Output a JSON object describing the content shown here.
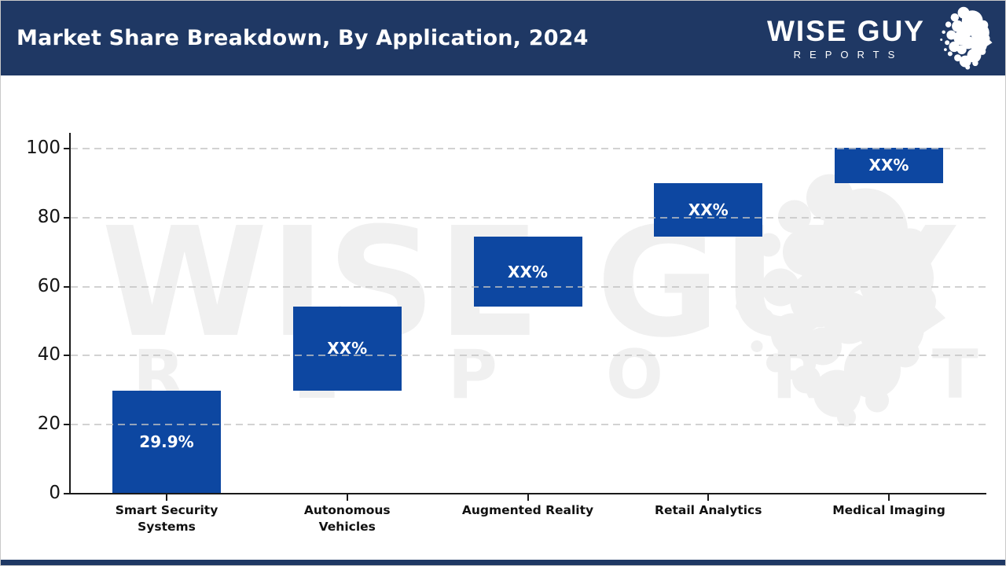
{
  "header": {
    "title": "Market Share Breakdown, By Application, 2024",
    "bg_color": "#1f3864",
    "logo": {
      "line1": "WISE GUY",
      "line2": "REPORTS"
    }
  },
  "watermark": {
    "line1": "WISE GUY",
    "line2": "R E P O R T S",
    "color": "#f0f0f0",
    "head_icon": "dotted-head-profile"
  },
  "footer": {
    "bg_color": "#1f3864"
  },
  "chart_data": {
    "type": "bar",
    "subtype": "waterfall",
    "title": "Market Share Breakdown, By Application, 2024",
    "categories": [
      "Smart Security Systems",
      "Autonomous Vehicles",
      "Augmented Reality",
      "Retail Analytics",
      "Medical Imaging"
    ],
    "categories_wrapped": [
      [
        "Smart Security",
        "Systems"
      ],
      [
        "Autonomous",
        "Vehicles"
      ],
      [
        "Augmented Reality"
      ],
      [
        "Retail Analytics"
      ],
      [
        "Medical Imaging"
      ]
    ],
    "segments": [
      {
        "category": "Smart Security Systems",
        "start": 0,
        "end": 29.9,
        "label": "29.9%"
      },
      {
        "category": "Autonomous Vehicles",
        "start": 29.9,
        "end": 54.2,
        "label": "XX%"
      },
      {
        "category": "Augmented Reality",
        "start": 54.2,
        "end": 74.4,
        "label": "XX%"
      },
      {
        "category": "Retail Analytics",
        "start": 74.4,
        "end": 90.0,
        "label": "XX%"
      },
      {
        "category": "Medical Imaging",
        "start": 90.0,
        "end": 100.3,
        "label": "XX%"
      }
    ],
    "yticks": [
      0,
      20,
      40,
      60,
      80,
      100
    ],
    "ylim": [
      0,
      104
    ],
    "xlabel": "",
    "ylabel": "",
    "grid": "horizontal-dashed",
    "legend": "none",
    "bar_color": "#0d47a1",
    "bar_label_color": "#ffffff",
    "axis_color": "#1a1a1a"
  }
}
